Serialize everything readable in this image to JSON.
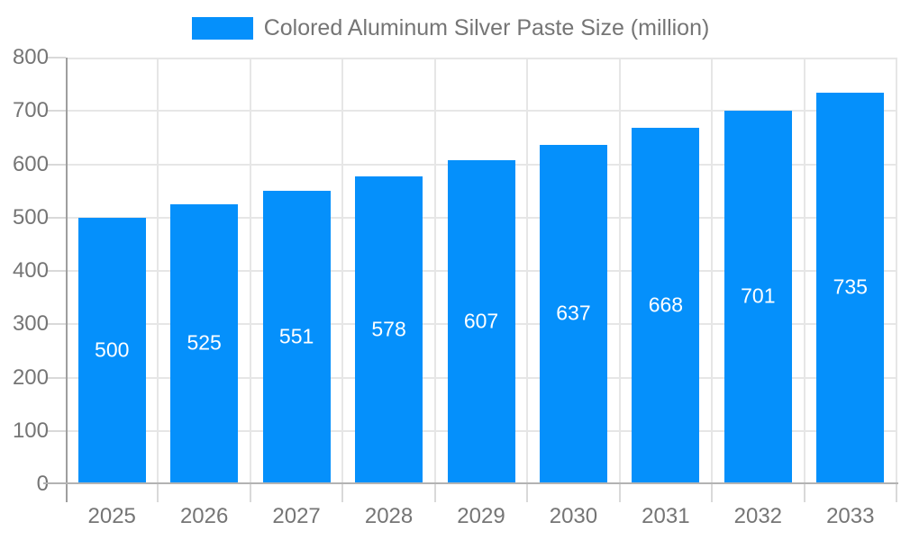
{
  "colors": {
    "bar": "#0590fb",
    "grid": "#e6e6e6",
    "tick": "#d9d9d9",
    "axis": "#9e9e9e",
    "baseline": "#b3b3b3",
    "text": "#757575",
    "bar_label": "#ffffff",
    "background": "#ffffff"
  },
  "chart_data": {
    "type": "bar",
    "series_name": "Colored Aluminum Silver Paste Size (million)",
    "categories": [
      "2025",
      "2026",
      "2027",
      "2028",
      "2029",
      "2030",
      "2031",
      "2032",
      "2033"
    ],
    "values": [
      500,
      525,
      551,
      578,
      607,
      637,
      668,
      701,
      735
    ],
    "bar_labels": [
      "500",
      "525",
      "551",
      "578",
      "607",
      "637",
      "668",
      "701",
      "735"
    ],
    "xlabel": "",
    "ylabel": "",
    "ylim": [
      0,
      800
    ],
    "ytick_step": 100,
    "yticks": [
      "0",
      "100",
      "200",
      "300",
      "400",
      "500",
      "600",
      "700",
      "800"
    ],
    "grid": true,
    "legend_position": "top"
  }
}
